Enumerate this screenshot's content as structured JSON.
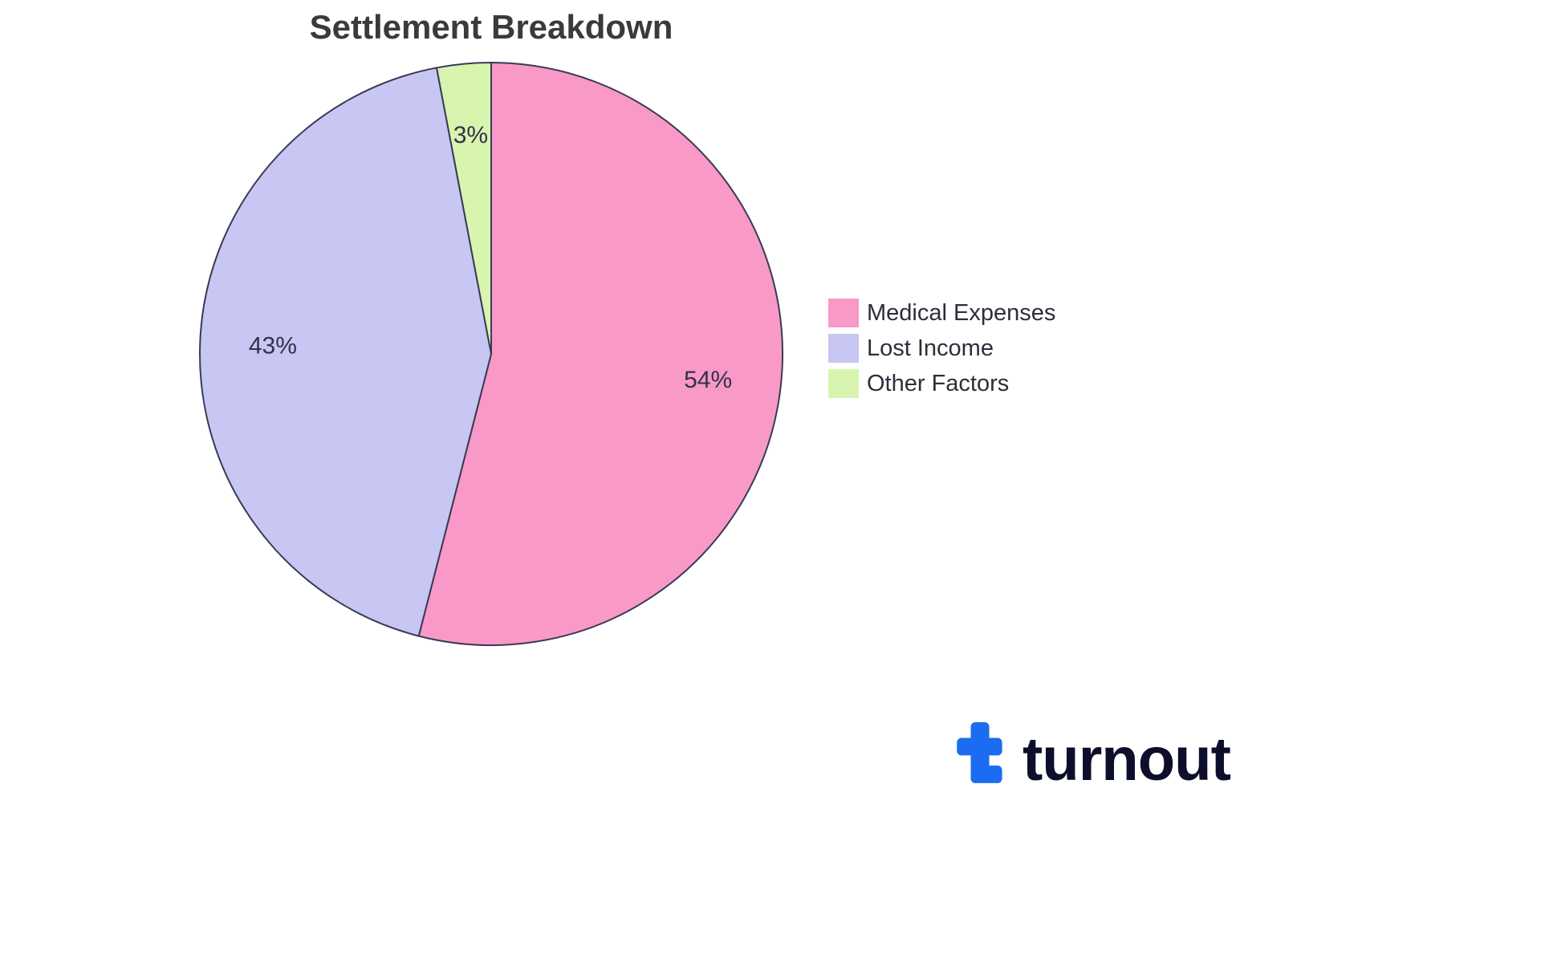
{
  "title": "Settlement Breakdown",
  "chart_data": {
    "type": "pie",
    "title": "Settlement Breakdown",
    "labels": [
      "Medical Expenses",
      "Lost Income",
      "Other Factors"
    ],
    "values": [
      54,
      43,
      3
    ],
    "percent_labels": [
      "54%",
      "43%",
      "3%"
    ],
    "colors": [
      "#F899C7",
      "#C8C6F3",
      "#D8F5AF"
    ],
    "edge_color": "#3A3A55",
    "start_angle": "top",
    "direction": "clockwise",
    "legend_position": "right",
    "legend_entries": [
      "Medical Expenses",
      "Lost Income",
      "Other Factors"
    ]
  },
  "branding": {
    "logo_text": "turnout",
    "logo_text_color": "#0D0E2B",
    "logo_icon": "turnout-t-icon",
    "logo_icon_color": "#1B6CF0"
  }
}
